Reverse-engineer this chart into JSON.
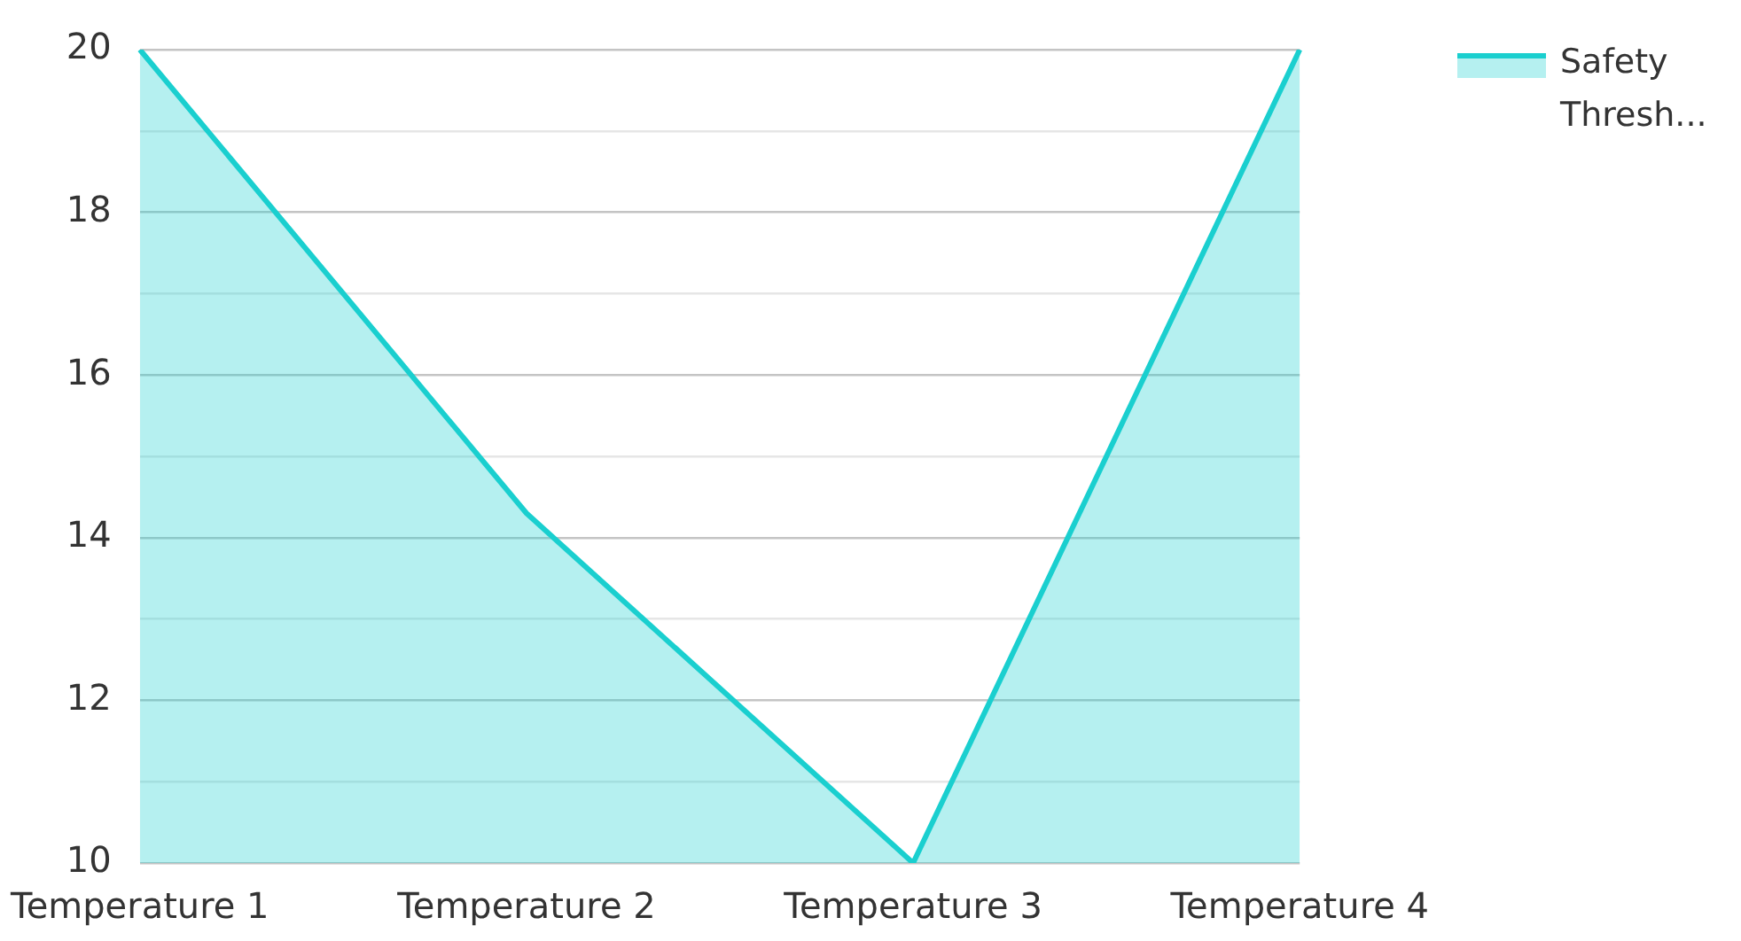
{
  "chart_data": {
    "type": "area",
    "categories": [
      "Temperature 1",
      "Temperature 2",
      "Temperature 3",
      "Temperature 4"
    ],
    "series": [
      {
        "name": "Safety Thresh...",
        "color": "#1acfcf",
        "values": [
          20,
          14.3,
          10,
          20
        ]
      }
    ],
    "ylim": [
      10,
      20
    ],
    "yticks": [
      10,
      {
        "value": 11,
        "label": null
      },
      12,
      {
        "value": 13,
        "label": null
      },
      14,
      {
        "value": 15,
        "label": null
      },
      16,
      {
        "value": 17,
        "label": null
      },
      18,
      {
        "value": 19,
        "label": null
      },
      20
    ],
    "grid": "y",
    "legend": "top right",
    "marker": "none",
    "line_style": "solid"
  }
}
